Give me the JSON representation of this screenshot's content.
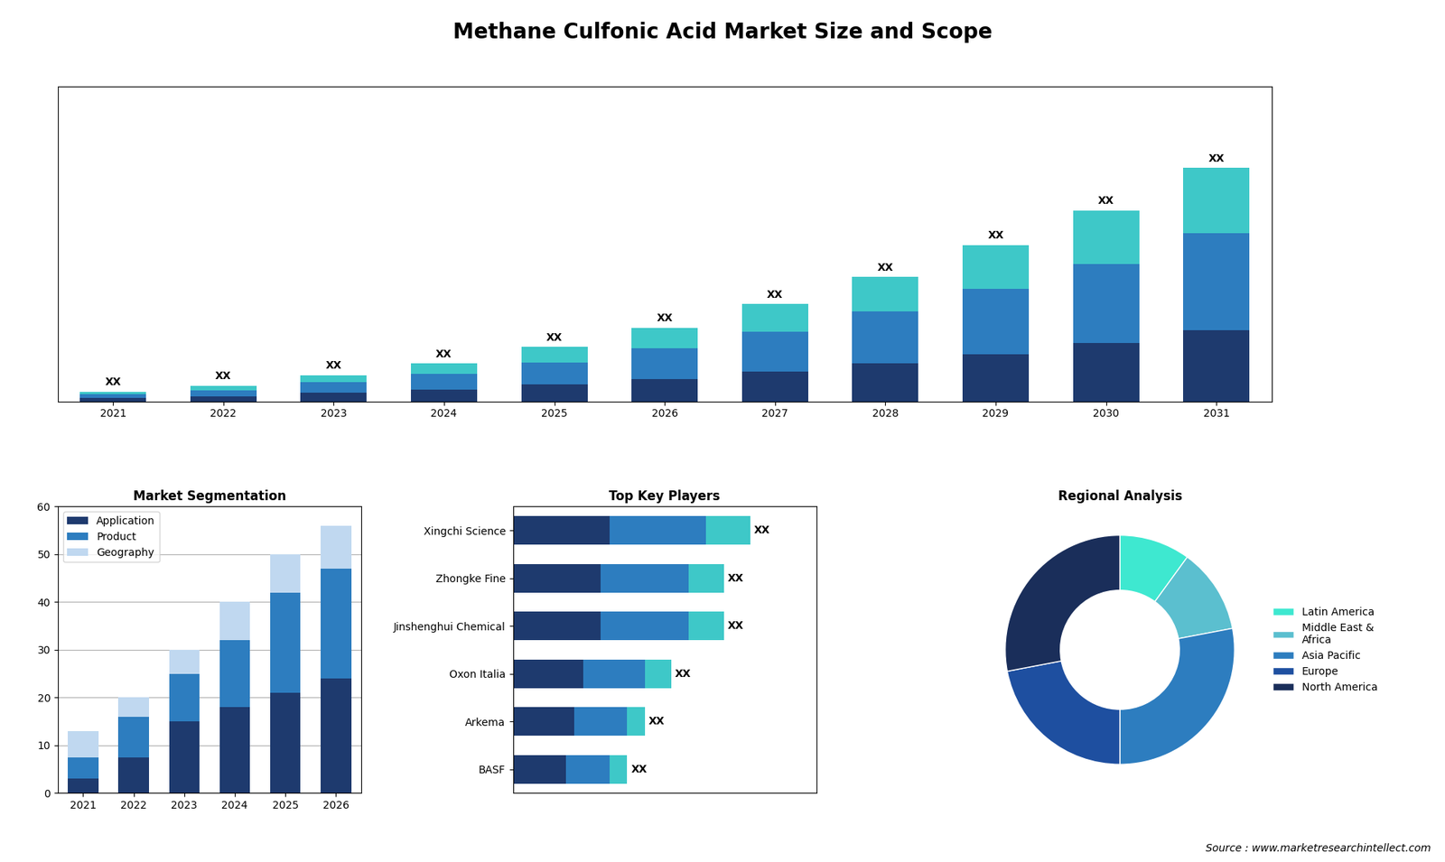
{
  "title": "Methane Culfonic Acid Market Size and Scope",
  "annotations": [
    "Source : www.marketresearchintellect.com"
  ],
  "chart_data": [
    {
      "type": "bar",
      "stacked": true,
      "categories": [
        "2021",
        "2022",
        "2023",
        "2024",
        "2025",
        "2026",
        "2027",
        "2028",
        "2029",
        "2030",
        "2031"
      ],
      "series": [
        {
          "color": "#1e3a6e",
          "values": [
            1.5,
            2.0,
            3.5,
            5.0,
            7.0,
            9.5,
            12.5,
            16.0,
            20.0,
            24.5,
            30.0
          ]
        },
        {
          "color": "#2d7dbf",
          "values": [
            1.5,
            2.5,
            4.5,
            6.5,
            9.5,
            13.0,
            17.0,
            22.0,
            27.5,
            33.5,
            41.0
          ]
        },
        {
          "color": "#3ec8c8",
          "values": [
            1.0,
            2.0,
            3.0,
            4.5,
            6.5,
            8.5,
            11.5,
            14.5,
            18.5,
            22.5,
            27.5
          ]
        }
      ],
      "stack_labels": [
        "XX",
        "XX",
        "XX",
        "XX",
        "XX",
        "XX",
        "XX",
        "XX",
        "XX",
        "XX",
        "XX"
      ],
      "ylim": [
        0,
        132.975
      ],
      "tick_labels": "x",
      "grid": false
    },
    {
      "type": "bar",
      "stacked": true,
      "title": "Market Segmentation",
      "categories": [
        "2021",
        "2022",
        "2023",
        "2024",
        "2025",
        "2026"
      ],
      "series": [
        {
          "name": "Application",
          "color": "#1e3a6e",
          "values": [
            3,
            7.5,
            15,
            18,
            21,
            24
          ]
        },
        {
          "name": "Product",
          "color": "#2d7dbf",
          "values": [
            4.5,
            8.5,
            10,
            14,
            21,
            23
          ]
        },
        {
          "name": "Geography",
          "color": "#c0d8f0",
          "values": [
            5.5,
            4,
            5,
            8,
            8,
            9
          ]
        }
      ],
      "ylim": [
        0,
        60
      ],
      "yticks": [
        0,
        10,
        20,
        30,
        40,
        50,
        60
      ],
      "grid": true,
      "legend": "upper left"
    },
    {
      "type": "bar",
      "stacked": true,
      "orientation": "horizontal",
      "title": "Top Key Players",
      "categories": [
        "Xingchi Science",
        "Zhongke Fine",
        "Jinshenghui Chemical",
        "Oxon Italia",
        "Arkema",
        "BASF"
      ],
      "series": [
        {
          "color": "#1e3a6e",
          "values": [
            5.5,
            5.0,
            5.0,
            4.0,
            3.5,
            3.0
          ]
        },
        {
          "color": "#2d7dbf",
          "values": [
            5.5,
            5.0,
            5.0,
            3.5,
            3.0,
            2.5
          ]
        },
        {
          "color": "#3ec8c8",
          "values": [
            2.5,
            2.0,
            2.0,
            1.5,
            1.0,
            1.0
          ]
        }
      ],
      "stack_labels": [
        "XX",
        "XX",
        "XX",
        "XX",
        "XX",
        "XX"
      ],
      "xlim": [
        0,
        17.28
      ],
      "tick_labels": "y",
      "grid": false
    },
    {
      "type": "pie",
      "title": "Regional Analysis",
      "categories": [
        "Latin America",
        "Middle East &\nAfrica",
        "Asia Pacific",
        "Europe",
        "North America"
      ],
      "values": [
        10,
        12,
        28,
        22,
        28
      ],
      "colors": [
        "#3ee8d0",
        "#5bbfcf",
        "#2d7dbf",
        "#1e4fa0",
        "#1a2e5a"
      ],
      "legend": "center left"
    }
  ]
}
